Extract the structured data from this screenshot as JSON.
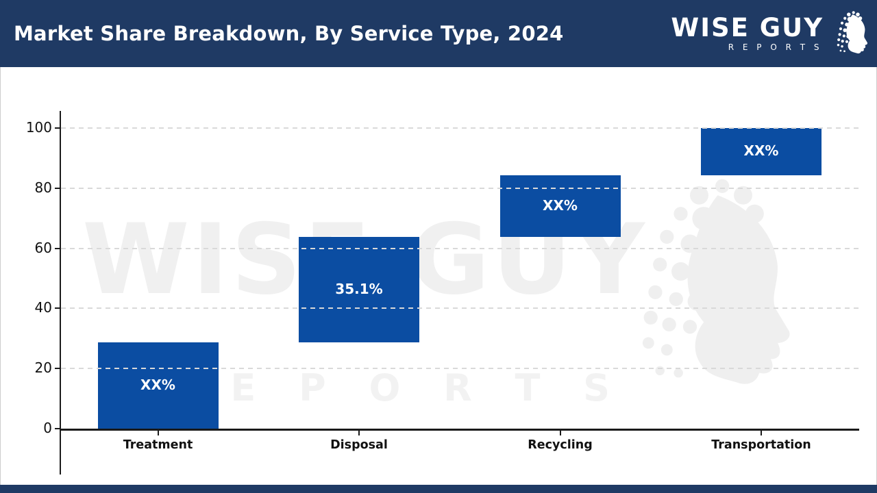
{
  "header": {
    "title": "Market Share Breakdown, By Service Type, 2024",
    "logo": {
      "line1": "WISE GUY",
      "line2": "R E P O R T S"
    }
  },
  "watermark": {
    "line1": "WISE GUY",
    "line2": "R E P O R T S"
  },
  "chart_data": {
    "type": "bar",
    "subtype": "floating-waterfall",
    "title": "Market Share Breakdown, By Service Type, 2024",
    "categories": [
      "Treatment",
      "Disposal",
      "Recycling",
      "Transportation"
    ],
    "segments": [
      {
        "category": "Treatment",
        "start": 0,
        "end": 28.6,
        "label": "XX%"
      },
      {
        "category": "Disposal",
        "start": 28.6,
        "end": 63.7,
        "label": "35.1%"
      },
      {
        "category": "Recycling",
        "start": 63.7,
        "end": 84.3,
        "label": "XX%"
      },
      {
        "category": "Transportation",
        "start": 84.3,
        "end": 100,
        "label": "XX%"
      }
    ],
    "y_ticks": [
      0,
      20,
      40,
      60,
      80,
      100
    ],
    "ylim": [
      0,
      105
    ],
    "xlabel": "",
    "ylabel": "",
    "grid": "horizontal-dashed",
    "legend": "none"
  },
  "colors": {
    "header_bg": "#1f3a64",
    "footer_bg": "#1f3a64",
    "bar": "#0b4da2",
    "bar_label": "#ffffff",
    "axis": "#1a1a1a",
    "gridline": "#d9d9d9",
    "watermark": "#efefef"
  }
}
